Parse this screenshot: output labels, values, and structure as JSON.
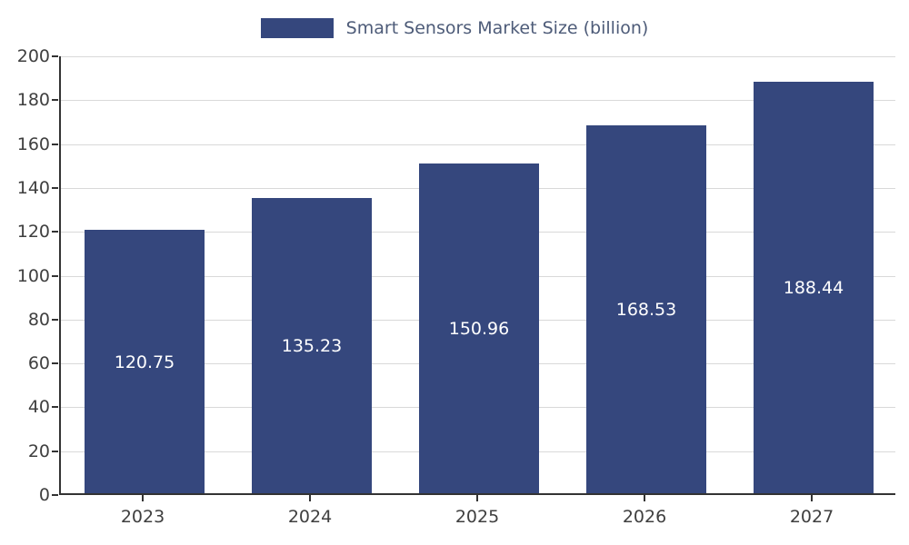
{
  "legend": {
    "label": "Smart Sensors Market Size (billion)"
  },
  "chart_data": {
    "type": "bar",
    "title": "Smart Sensors Market Size (billion)",
    "categories": [
      "2023",
      "2024",
      "2025",
      "2026",
      "2027"
    ],
    "values": [
      120.75,
      135.23,
      150.96,
      168.53,
      188.44
    ],
    "value_labels": [
      "120.75",
      "135.23",
      "150.96",
      "168.53",
      "188.44"
    ],
    "ylabel": "",
    "xlabel": "",
    "ylim": [
      0,
      200
    ],
    "ytick_step": 20,
    "grid": true,
    "legend_position": "top-center",
    "colors": {
      "bar_fill": "#35477d",
      "bar_value_text": "#ffffff",
      "axis_text": "#3f3f3f",
      "legend_text": "#4d5b78",
      "gridline": "#d9d9d9",
      "axis_line": "#333333"
    }
  }
}
